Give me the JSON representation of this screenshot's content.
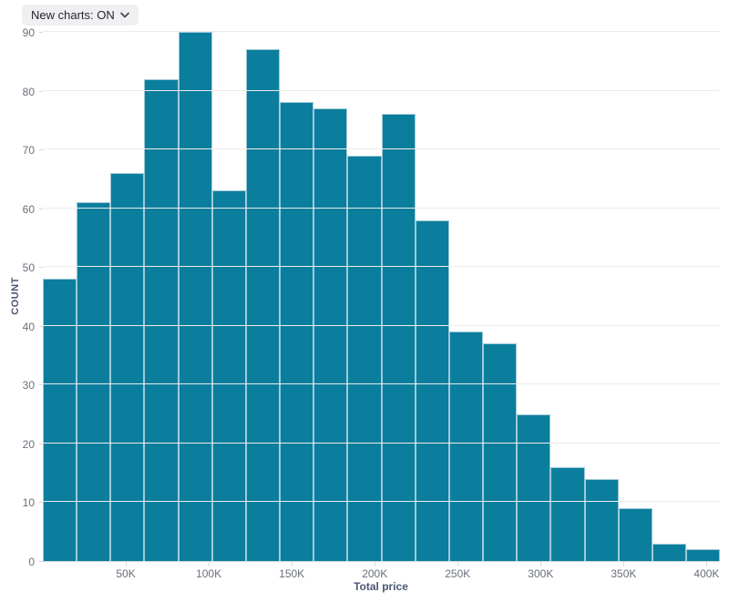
{
  "toolbar": {
    "new_charts_label": "New charts: ON",
    "chevron_icon": "chevron-down"
  },
  "chart_data": {
    "type": "bar",
    "subtype": "histogram",
    "title": "",
    "xlabel": "Total price",
    "ylabel": "COUNT",
    "bins": 20,
    "values": [
      48,
      61,
      66,
      82,
      90,
      63,
      87,
      78,
      77,
      69,
      76,
      58,
      39,
      37,
      25,
      16,
      14,
      9,
      3,
      2
    ],
    "x_ticks": [
      {
        "label": "50K",
        "value": 50
      },
      {
        "label": "100K",
        "value": 100
      },
      {
        "label": "150K",
        "value": 150
      },
      {
        "label": "200K",
        "value": 200
      },
      {
        "label": "250K",
        "value": 250
      },
      {
        "label": "300K",
        "value": 300
      },
      {
        "label": "350K",
        "value": 350
      },
      {
        "label": "400K",
        "value": 400
      }
    ],
    "xlim": [
      0,
      408
    ],
    "y_ticks": [
      0,
      10,
      20,
      30,
      40,
      50,
      60,
      70,
      80,
      90
    ],
    "ylim": [
      0,
      90
    ],
    "grid": true,
    "legend": "none",
    "colors": {
      "bar_fill": "#0b7e9d",
      "bar_edge": "#9fc9d9",
      "gridline": "#ececec",
      "axis_line": "#d6d8da",
      "tick_text": "#696f7b",
      "axis_title_text": "#4c5773",
      "pill_bg": "#f0f0f2",
      "pill_text": "#24272c"
    }
  }
}
